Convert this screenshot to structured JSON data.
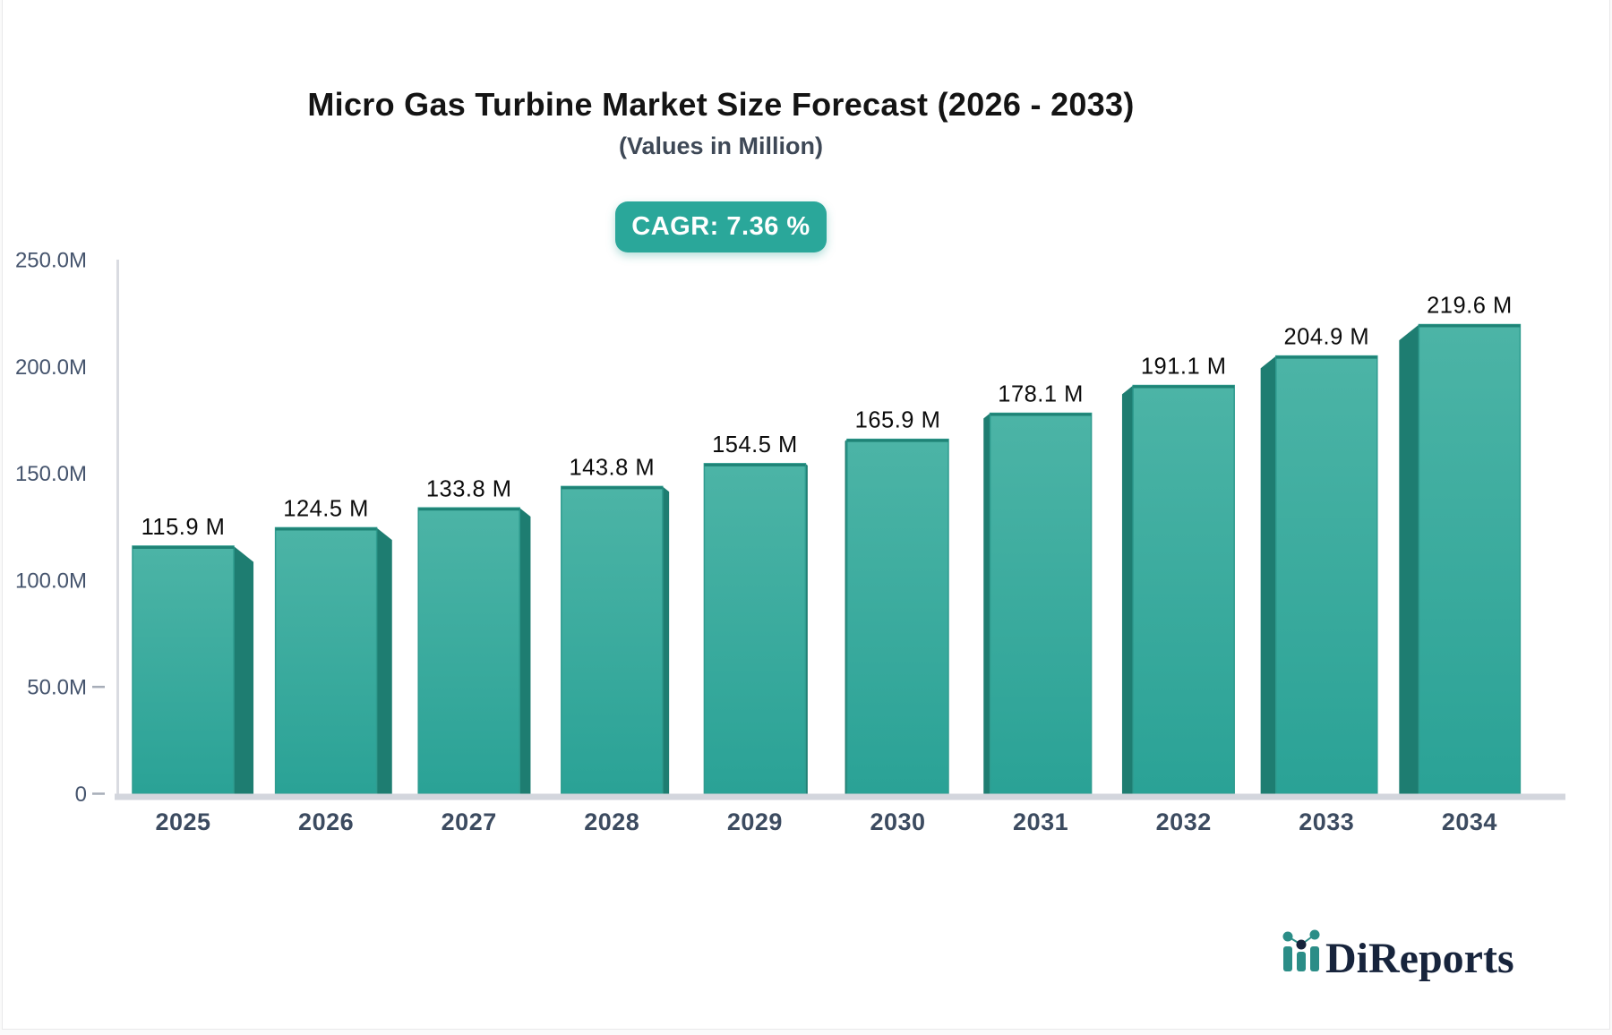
{
  "header": {
    "title": "Micro Gas Turbine Market Size Forecast (2026 - 2033)",
    "subtitle": "(Values in Million)"
  },
  "badge": {
    "label": "CAGR: 7.36 %",
    "bg": "#2AA79A",
    "text_color": "#FFFFFF"
  },
  "chart_data": {
    "type": "bar",
    "title": "Micro Gas Turbine Market Size Forecast (2026 - 2033)",
    "subtitle": "(Values in Million)",
    "categories": [
      "2025",
      "2026",
      "2027",
      "2028",
      "2029",
      "2030",
      "2031",
      "2032",
      "2033",
      "2034"
    ],
    "values": [
      115.9,
      124.5,
      133.8,
      143.8,
      154.5,
      165.9,
      178.1,
      191.1,
      204.9,
      219.6
    ],
    "value_labels": [
      "115.9 M",
      "124.5 M",
      "133.8 M",
      "143.8 M",
      "154.5 M",
      "165.9 M",
      "178.1 M",
      "191.1 M",
      "204.9 M",
      "219.6 M"
    ],
    "unit": "Million",
    "xlabel": "",
    "ylabel": "",
    "ylim": [
      0,
      250
    ],
    "yticks": [
      {
        "label": "250.0M",
        "value": 250,
        "tick": false
      },
      {
        "label": "200.0M",
        "value": 200,
        "tick": false
      },
      {
        "label": "150.0M",
        "value": 150,
        "tick": false
      },
      {
        "label": "100.0M",
        "value": 100,
        "tick": false
      },
      {
        "label": "50.0M",
        "value": 50,
        "tick": true
      },
      {
        "label": "0",
        "value": 0,
        "tick": true
      }
    ],
    "grid": false,
    "legend": null,
    "style": "3d-bars, dark side faces toward chart center",
    "colors": {
      "face_top": "#4CB4A6",
      "face_bottom": "#2AA296",
      "face_stroke": "#2F9C8F",
      "top_edge": "#1F8376",
      "side": "#1E7D71",
      "axis_line": "#D9DBE1",
      "baseline": "#D3D6DD",
      "tick": "#A7ADB8",
      "x_label": "#3C4B60",
      "y_label": "#45546D",
      "value_label": "#0C0C0C"
    }
  },
  "branding": {
    "name": "DiReports",
    "navy": "#17243C",
    "teal": "#2B8D87"
  }
}
